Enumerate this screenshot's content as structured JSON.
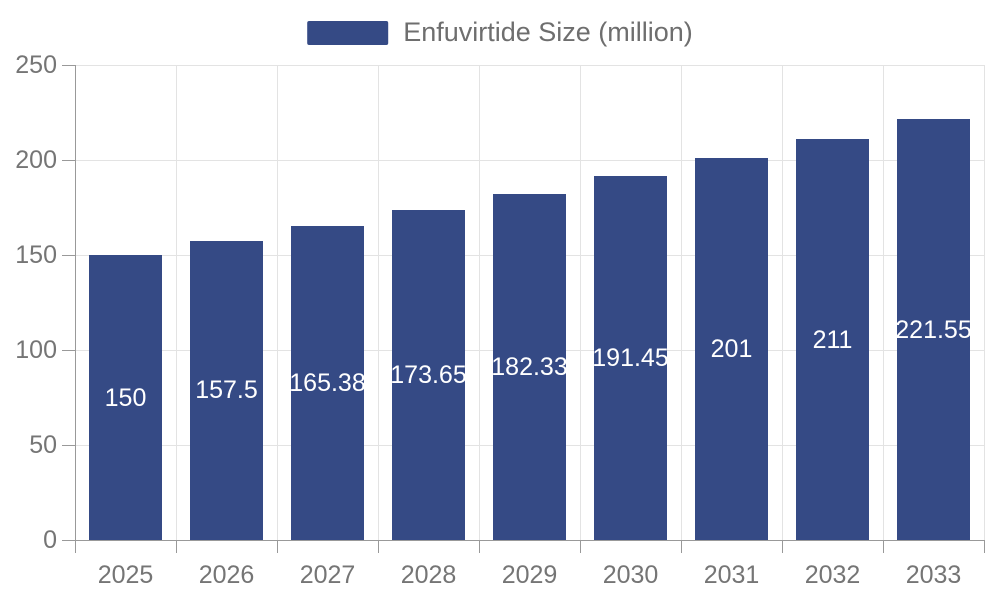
{
  "legend": {
    "label": "Enfuvirtide Size (million)"
  },
  "colors": {
    "bar": "#354a85",
    "bar_label_text": "#ffffff",
    "axis_line": "#999999",
    "grid_line": "#e3e3e3",
    "tick_text": "#757575",
    "legend_text": "#6e6e6e"
  },
  "chart_data": {
    "type": "bar",
    "title": "",
    "legend": "Enfuvirtide Size (million)",
    "legend_position": "top-center",
    "categories": [
      "2025",
      "2026",
      "2027",
      "2028",
      "2029",
      "2030",
      "2031",
      "2032",
      "2033"
    ],
    "values": [
      150,
      157.5,
      165.38,
      173.65,
      182.33,
      191.45,
      201,
      211,
      221.55
    ],
    "value_labels": [
      "150",
      "157.5",
      "165.38",
      "173.65",
      "182.33",
      "191.45",
      "201",
      "211",
      "221.55"
    ],
    "xlabel": "",
    "ylabel": "",
    "ylim": [
      0,
      250
    ],
    "yticks": [
      0,
      50,
      100,
      150,
      200,
      250
    ],
    "grid": true,
    "value_label_position": "inside-center"
  }
}
